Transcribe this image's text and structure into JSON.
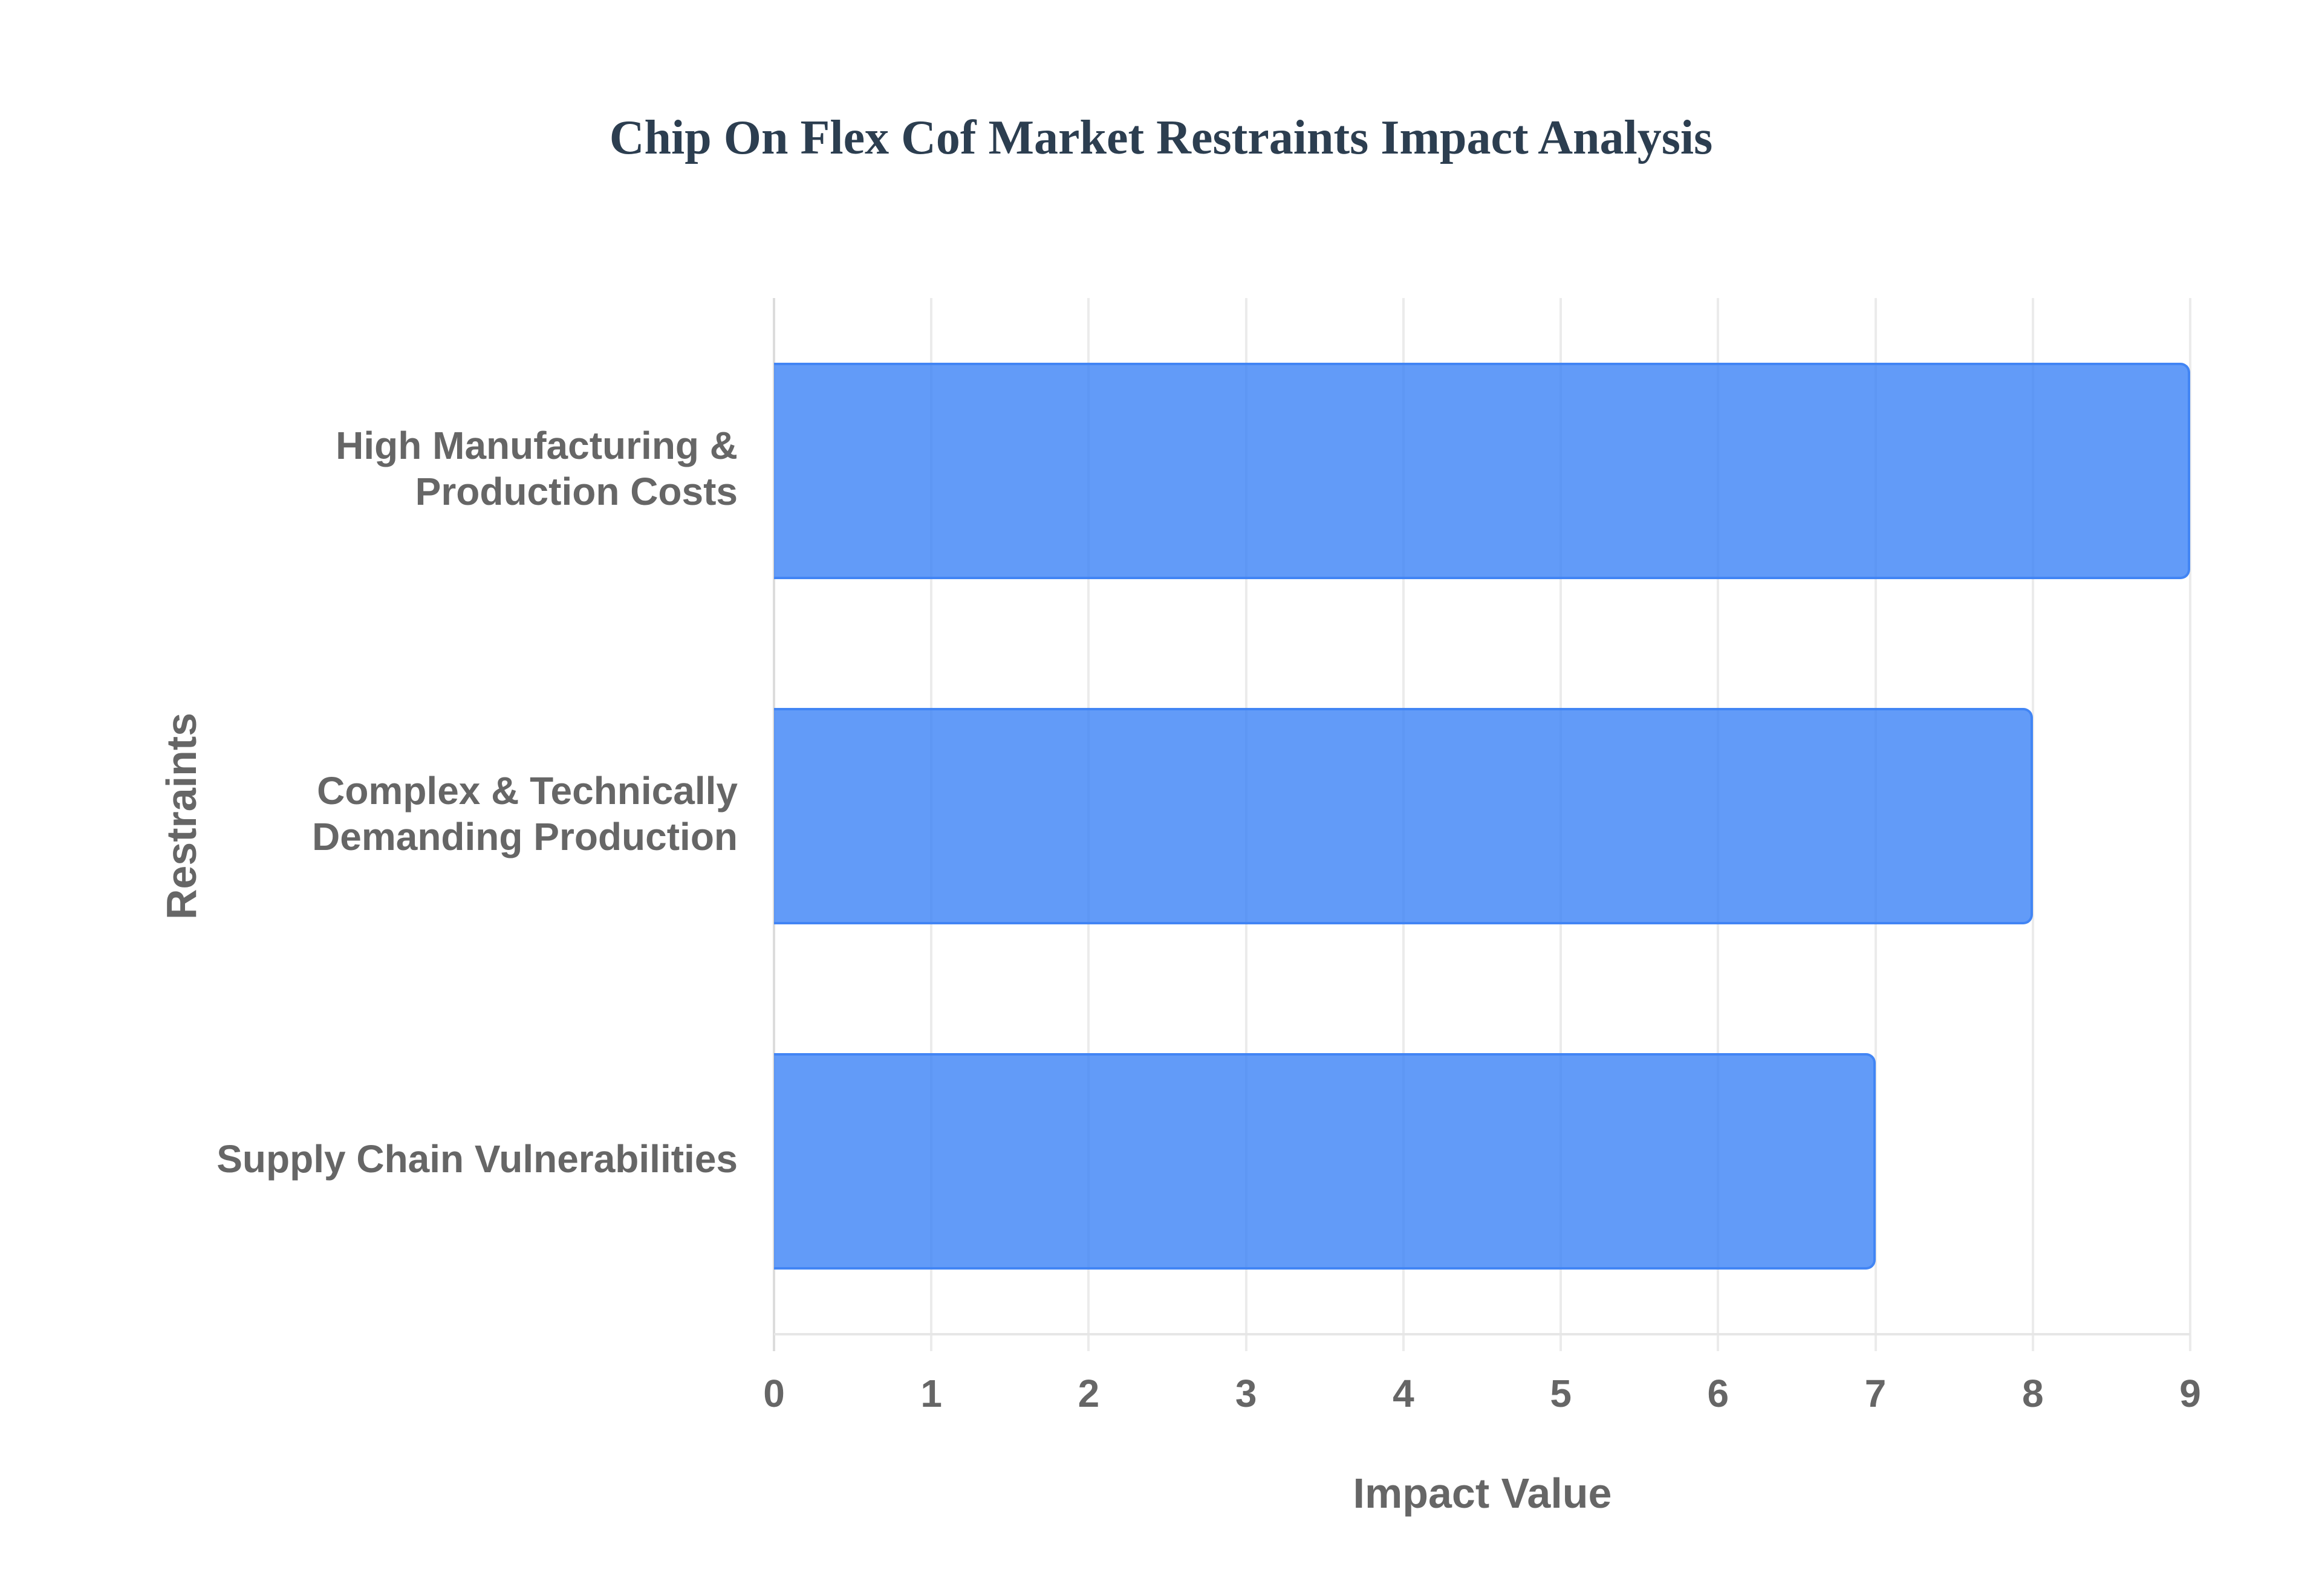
{
  "title": "Chip On Flex Cof Market Restraints Impact Analysis",
  "colors": {
    "title": "#2c3e50",
    "bar_fill": "rgba(59,130,246,0.8)",
    "bar_border": "#4285f4",
    "axis_text": "#666666",
    "grid": "#ebebeb",
    "background": "#ffffff"
  },
  "axes": {
    "x_title": "Impact Value",
    "y_title": "Restraints",
    "x_ticks": [
      "0",
      "1",
      "2",
      "3",
      "4",
      "5",
      "6",
      "7",
      "8",
      "9"
    ]
  },
  "categories": [
    {
      "lines": [
        "High Manufacturing &",
        "Production Costs"
      ],
      "value": 9
    },
    {
      "lines": [
        "Complex & Technically",
        "Demanding Production"
      ],
      "value": 8
    },
    {
      "lines": [
        "Supply Chain Vulnerabilities"
      ],
      "value": 7
    }
  ],
  "chart_data": {
    "type": "bar",
    "orientation": "horizontal",
    "title": "Chip On Flex Cof Market Restraints Impact Analysis",
    "categories": [
      "High Manufacturing & Production Costs",
      "Complex & Technically Demanding Production",
      "Supply Chain Vulnerabilities"
    ],
    "values": [
      9,
      8,
      7
    ],
    "xlabel": "Impact Value",
    "ylabel": "Restraints",
    "xlim": [
      0,
      9
    ],
    "x_ticks": [
      0,
      1,
      2,
      3,
      4,
      5,
      6,
      7,
      8,
      9
    ],
    "grid": true,
    "legend": null
  }
}
